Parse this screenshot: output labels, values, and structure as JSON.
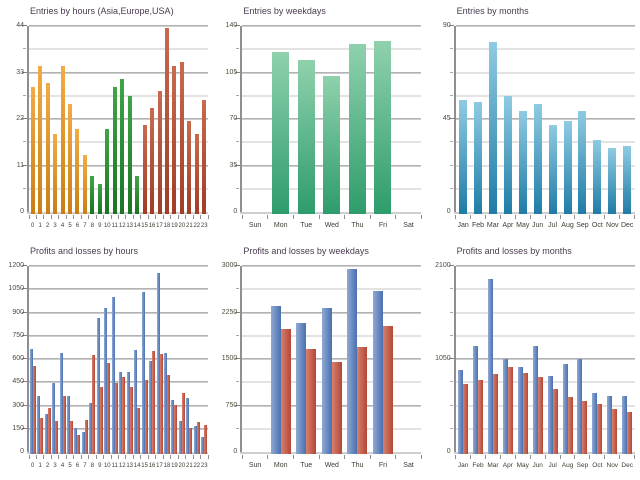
{
  "page_background": "#ffffff",
  "chart_data": [
    {
      "type": "bar",
      "title": "Entries by hours (Asia,Europe,USA)",
      "categories": [
        "0",
        "1",
        "2",
        "3",
        "4",
        "5",
        "6",
        "7",
        "8",
        "9",
        "10",
        "11",
        "12",
        "13",
        "14",
        "15",
        "16",
        "17",
        "18",
        "19",
        "20",
        "21",
        "22",
        "23"
      ],
      "values": [
        30,
        35,
        31,
        19,
        35,
        26,
        20,
        14,
        9,
        7,
        20,
        30,
        32,
        28,
        9,
        21,
        25,
        29,
        44,
        35,
        36,
        22,
        19,
        27
      ],
      "ymax": 44,
      "ytick_labels": [
        0,
        11,
        22,
        33,
        44
      ],
      "grid_divisions": 8,
      "legend_position": "none",
      "colors": {
        "groups": [
          {
            "name": "asia",
            "top": "#F2AB45",
            "bottom": "#C97F12"
          },
          {
            "name": "europe",
            "top": "#3FA546",
            "bottom": "#1A7423"
          },
          {
            "name": "usa",
            "top": "#C96A4E",
            "bottom": "#A13C26"
          }
        ],
        "group_of_bar": [
          0,
          0,
          0,
          0,
          0,
          0,
          0,
          0,
          1,
          1,
          1,
          1,
          1,
          1,
          1,
          2,
          2,
          2,
          2,
          2,
          2,
          2,
          2,
          2
        ]
      }
    },
    {
      "type": "bar",
      "title": "Entries by weekdays",
      "categories": [
        "Sun",
        "Mon",
        "Tue",
        "Wed",
        "Thu",
        "Fri",
        "Sat"
      ],
      "values": [
        0,
        122,
        116,
        104,
        128,
        130,
        0
      ],
      "ymax": 140,
      "ytick_labels": [
        0,
        35,
        70,
        105,
        140
      ],
      "grid_divisions": 8,
      "legend_position": "none",
      "colors": {
        "bar": [
          "#8FD1AD",
          "#2E9C6C"
        ]
      }
    },
    {
      "type": "bar",
      "title": "Entries by months",
      "categories": [
        "Jan",
        "Feb",
        "Mar",
        "Apr",
        "May",
        "Jun",
        "Jul",
        "Aug",
        "Sep",
        "Oct",
        "Nov",
        "Dec"
      ],
      "values": [
        55,
        54,
        83,
        57,
        50,
        53,
        43,
        45,
        50,
        36,
        32,
        33
      ],
      "ymax": 90,
      "ytick_labels": [
        0,
        45,
        90
      ],
      "grid_divisions": 8,
      "legend_position": "none",
      "colors": {
        "bar": [
          "#8FCBE2",
          "#1F7CA6"
        ]
      }
    },
    {
      "type": "bar",
      "title": "Profits and losses by hours",
      "categories": [
        "0",
        "1",
        "2",
        "3",
        "4",
        "5",
        "6",
        "7",
        "8",
        "9",
        "10",
        "11",
        "12",
        "13",
        "14",
        "15",
        "16",
        "17",
        "18",
        "19",
        "20",
        "21",
        "22",
        "23"
      ],
      "series": [
        {
          "name": "profits",
          "values": [
            675,
            375,
            255,
            460,
            650,
            375,
            170,
            140,
            330,
            880,
            940,
            1015,
            530,
            530,
            670,
            1045,
            600,
            1170,
            650,
            350,
            210,
            360,
            180,
            110
          ]
        },
        {
          "name": "losses",
          "values": [
            570,
            230,
            295,
            215,
            375,
            215,
            125,
            220,
            640,
            430,
            590,
            455,
            495,
            430,
            300,
            480,
            665,
            645,
            510,
            315,
            395,
            165,
            205,
            190
          ]
        }
      ],
      "ymax": 1200,
      "ytick_labels": [
        0,
        150,
        300,
        450,
        600,
        750,
        900,
        1050,
        1200
      ],
      "grid_divisions": 8,
      "legend_position": "none",
      "colors": {
        "profit": [
          "#8FA9D4",
          "#4A70AF"
        ],
        "loss": [
          "#D8806E",
          "#B34736"
        ]
      }
    },
    {
      "type": "bar",
      "title": "Profits and losses by weekdays",
      "categories": [
        "Sun",
        "Mon",
        "Tue",
        "Wed",
        "Thu",
        "Fri",
        "Sat"
      ],
      "series": [
        {
          "name": "profits",
          "values": [
            0,
            2380,
            2120,
            2360,
            2980,
            2625,
            0
          ]
        },
        {
          "name": "losses",
          "values": [
            0,
            2010,
            1690,
            1490,
            1720,
            2070,
            0
          ]
        }
      ],
      "ymax": 3000,
      "ytick_labels": [
        0,
        750,
        1500,
        2250,
        3000
      ],
      "grid_divisions": 8,
      "legend_position": "none",
      "colors": {
        "profit": [
          "#8FA9D4",
          "#4A70AF"
        ],
        "loss": [
          "#D8806E",
          "#B34736"
        ]
      }
    },
    {
      "type": "bar",
      "title": "Profits and losses by months",
      "categories": [
        "Jan",
        "Feb",
        "Mar",
        "Apr",
        "May",
        "Jun",
        "Jul",
        "Aug",
        "Sep",
        "Oct",
        "Nov",
        "Dec"
      ],
      "series": [
        {
          "name": "profits",
          "values": [
            950,
            1220,
            1980,
            1070,
            985,
            1220,
            885,
            1020,
            1070,
            685,
            650,
            650
          ]
        },
        {
          "name": "losses",
          "values": [
            790,
            840,
            900,
            980,
            920,
            865,
            735,
            640,
            595,
            565,
            510,
            470
          ]
        }
      ],
      "ymax": 2100,
      "ytick_labels": [
        0,
        1050,
        2100
      ],
      "grid_divisions": 8,
      "legend_position": "none",
      "colors": {
        "profit": [
          "#8FA9D4",
          "#4A70AF"
        ],
        "loss": [
          "#D8806E",
          "#B34736"
        ]
      }
    }
  ]
}
